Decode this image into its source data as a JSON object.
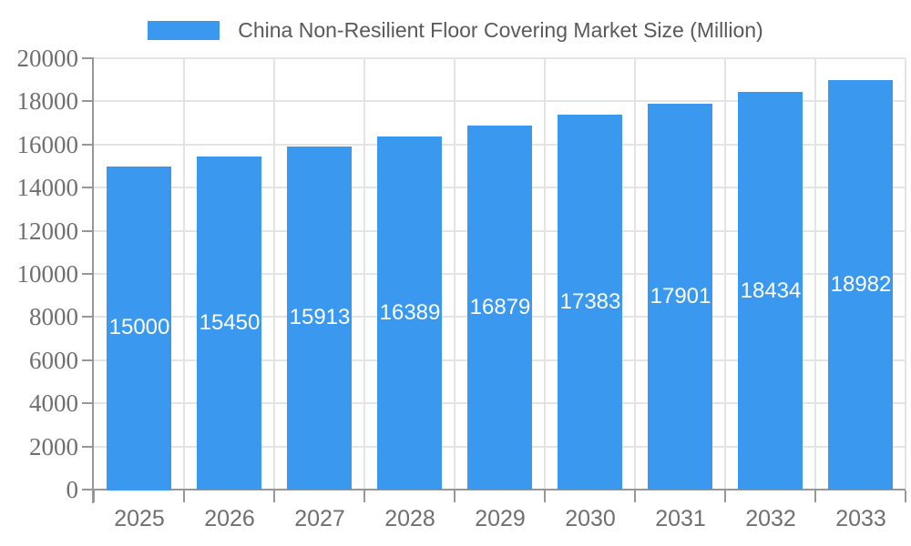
{
  "legend": {
    "label": "China Non-Resilient Floor Covering Market Size (Million)"
  },
  "chart_data": {
    "type": "bar",
    "title": "China Non-Resilient Floor Covering Market Size (Million)",
    "categories": [
      "2025",
      "2026",
      "2027",
      "2028",
      "2029",
      "2030",
      "2031",
      "2032",
      "2033"
    ],
    "values": [
      15000,
      15450,
      15913,
      16389,
      16879,
      17383,
      17901,
      18434,
      18982
    ],
    "bar_labels": [
      "15000",
      "15450",
      "15913",
      "16389",
      "16879",
      "17383",
      "17901",
      "18434",
      "18982"
    ],
    "xlabel": "",
    "ylabel": "",
    "ylim": [
      0,
      20000
    ],
    "y_ticks": [
      0,
      2000,
      4000,
      6000,
      8000,
      10000,
      12000,
      14000,
      16000,
      18000,
      20000
    ],
    "grid": true,
    "legend_position": "top",
    "bar_label_position": "inside-middle",
    "colors": {
      "bar": "#3A99EE",
      "grid": "#E4E4E4",
      "axis": "#979797",
      "tick_label": "#6F6F6F",
      "legend_text": "#595959",
      "bar_label": "#FFFFFF"
    }
  }
}
